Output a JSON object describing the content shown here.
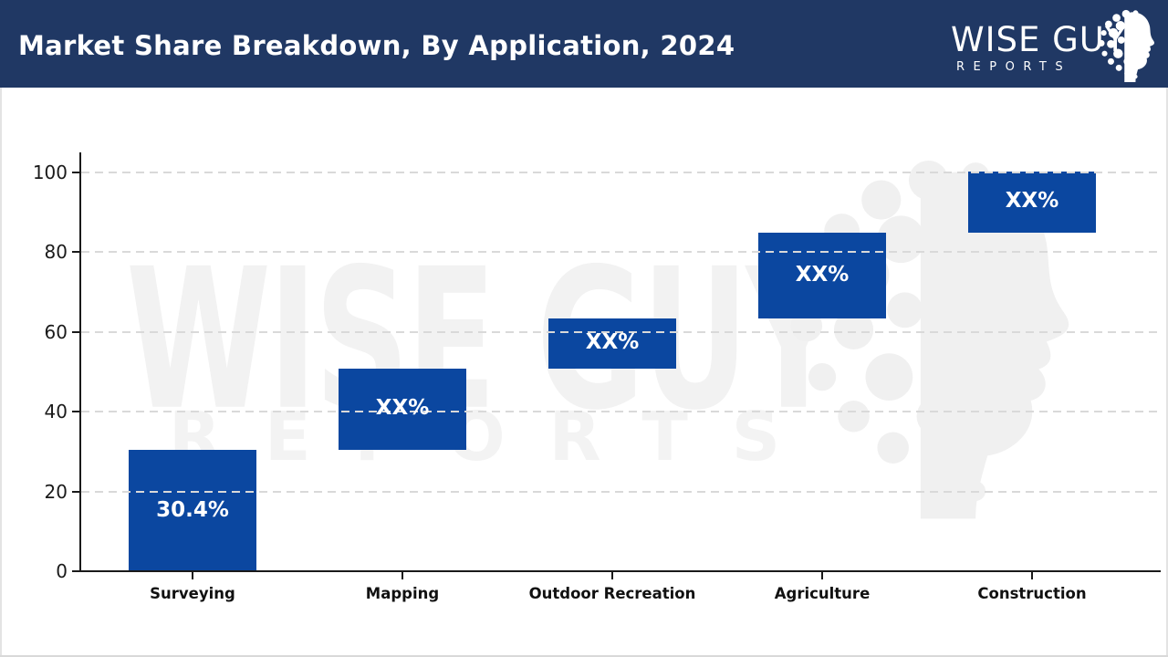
{
  "header": {
    "title": "Market Share Breakdown, By Application, 2024",
    "logo": {
      "line1": "WISE GUY",
      "line2": "REPORTS"
    }
  },
  "watermark": {
    "line1": "WISE GUY",
    "line2": "REPORTS"
  },
  "chart_data": {
    "type": "bar",
    "variant": "floating-waterfall",
    "title": "Market Share Breakdown, By Application, 2024",
    "categories": [
      "Surveying",
      "Mapping",
      "Outdoor Recreation",
      "Agriculture",
      "Construction"
    ],
    "segments": [
      {
        "category": "Surveying",
        "start": 0,
        "end": 30.4,
        "label": "30.4%"
      },
      {
        "category": "Mapping",
        "start": 30.4,
        "end": 50.9,
        "label": "XX%"
      },
      {
        "category": "Outdoor Recreation",
        "start": 50.9,
        "end": 63.4,
        "label": "XX%"
      },
      {
        "category": "Agriculture",
        "start": 63.4,
        "end": 84.9,
        "label": "XX%"
      },
      {
        "category": "Construction",
        "start": 84.9,
        "end": 100.3,
        "label": "XX%"
      }
    ],
    "ylim": [
      0,
      105
    ],
    "yticks": [
      0,
      20,
      40,
      60,
      80,
      100
    ],
    "xlabel": "",
    "ylabel": "",
    "legend": null,
    "grid": "horizontal-dashed",
    "colors": {
      "bar": "#0b47a0",
      "grid": "#d9d9d9",
      "axis": "#1a1a1a",
      "header": "#203864"
    }
  }
}
